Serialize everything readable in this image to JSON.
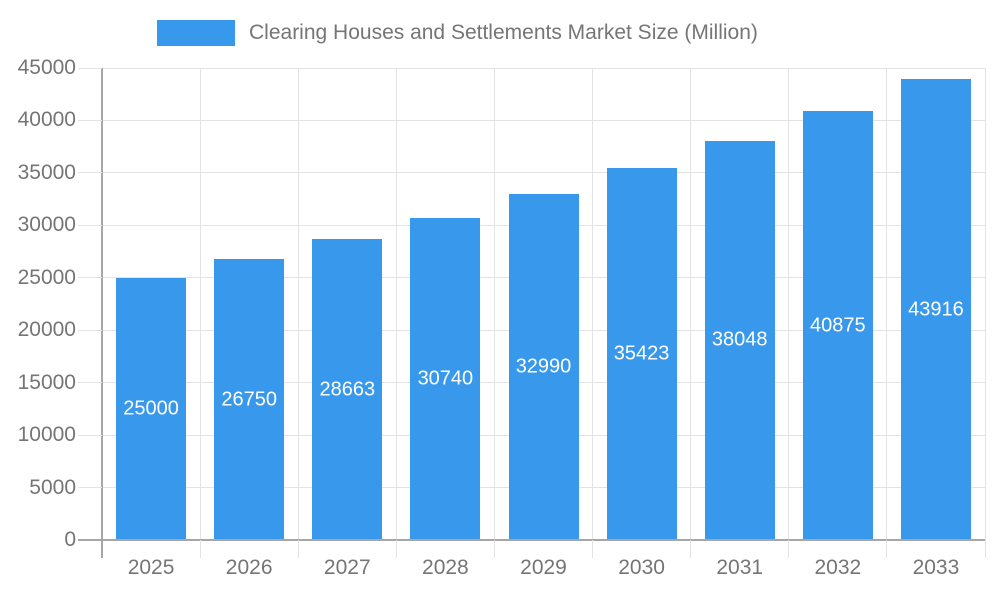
{
  "chart_data": {
    "type": "bar",
    "title": "Clearing Houses and Settlements Market Size (Million)",
    "categories": [
      "2025",
      "2026",
      "2027",
      "2028",
      "2029",
      "2030",
      "2031",
      "2032",
      "2033"
    ],
    "values": [
      25000,
      26750,
      28663,
      30740,
      32990,
      35423,
      38048,
      40875,
      43916
    ],
    "y_ticks": [
      0,
      5000,
      10000,
      15000,
      20000,
      25000,
      30000,
      35000,
      40000,
      45000
    ],
    "ylim": [
      0,
      45000
    ],
    "xlabel": "",
    "ylabel": "",
    "grid": "on",
    "legend_position": "top",
    "colors": {
      "bar": "#3899ec",
      "bar_value_text": "#ffffff",
      "axis_text": "#757575",
      "grid_line": "#e3e3e3",
      "axis_line": "#a6a6a6"
    }
  }
}
